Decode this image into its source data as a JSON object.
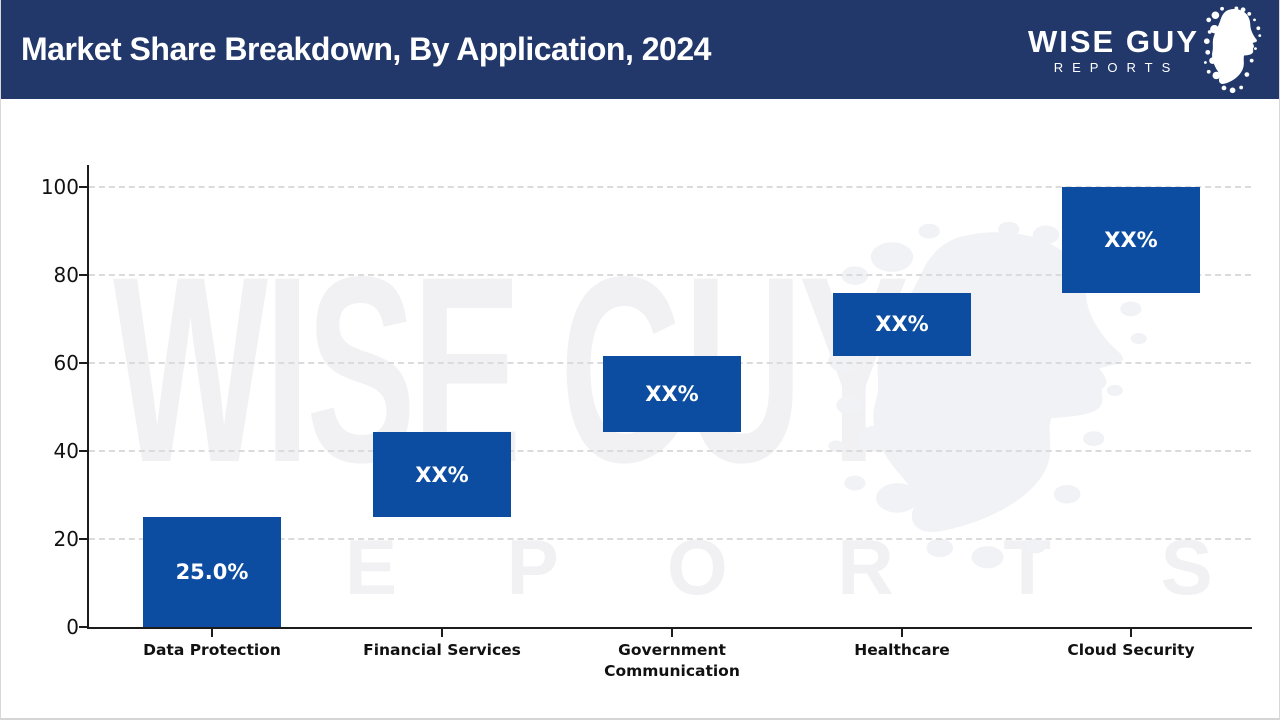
{
  "header": {
    "title": "Market Share Breakdown, By Application, 2024",
    "logo": {
      "line1": "WISE GUY",
      "line2": "REPORTS"
    }
  },
  "watermark": {
    "line1": "WISE GUY",
    "line2": "R E P O R T S"
  },
  "chart_data": {
    "type": "waterfall-bar",
    "title": "Market Share Breakdown, By Application, 2024",
    "categories": [
      "Data Protection",
      "Financial Services",
      "Government Communication",
      "Healthcare",
      "Cloud Security"
    ],
    "segments": [
      {
        "category": "Data Protection",
        "start": 0,
        "end": 25,
        "label": "25.0%"
      },
      {
        "category": "Financial Services",
        "start": 25,
        "end": 44.3,
        "label": "XX%"
      },
      {
        "category": "Government Communication",
        "start": 44.3,
        "end": 61.6,
        "label": "XX%"
      },
      {
        "category": "Healthcare",
        "start": 61.6,
        "end": 75.9,
        "label": "XX%"
      },
      {
        "category": "Cloud Security",
        "start": 75.9,
        "end": 100,
        "label": "XX%"
      }
    ],
    "yticks": [
      0,
      20,
      40,
      60,
      80,
      100
    ],
    "ylim": [
      0,
      105
    ],
    "xlabel": "",
    "ylabel": "",
    "grid": "dashed-horizontal",
    "legend": "none",
    "bar_color": "#0C4DA2",
    "bar_label_color": "#FFFFFF"
  },
  "colors": {
    "header_bg": "#22386B",
    "axis": "#1C1C1C",
    "gridline": "#DBDBDB",
    "watermark": "#F1F1F4",
    "frame_border": "#D8D8D8"
  }
}
